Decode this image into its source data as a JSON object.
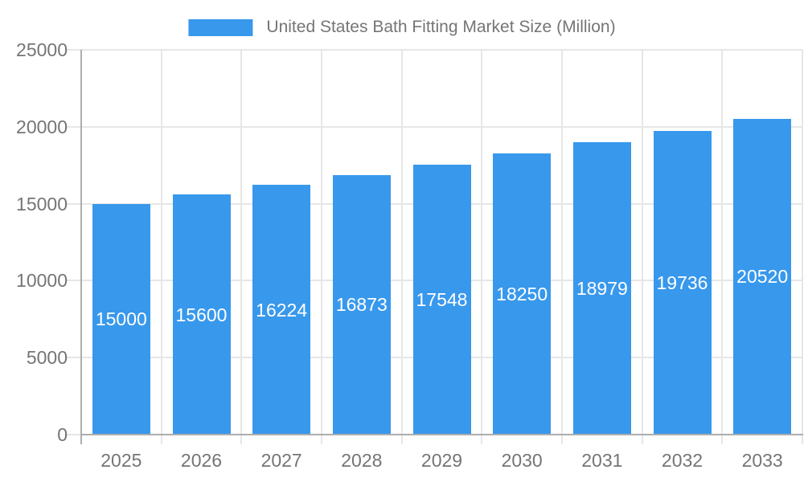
{
  "chart_data": {
    "type": "bar",
    "title": "United States Bath Fitting Market Size (Million)",
    "legend": {
      "label": "United States Bath Fitting Market Size (Million)",
      "position": "top",
      "swatch": "filled-rect"
    },
    "categories": [
      "2025",
      "2026",
      "2027",
      "2028",
      "2029",
      "2030",
      "2031",
      "2032",
      "2033"
    ],
    "values": [
      15000,
      15600,
      16224,
      16873,
      17548,
      18250,
      18979,
      19736,
      20520
    ],
    "value_labels": [
      "15000",
      "15600",
      "16224",
      "16873",
      "17548",
      "18250",
      "18979",
      "19736",
      "20520"
    ],
    "value_label_position": "inside-middle",
    "xlabel": "",
    "ylabel": "",
    "ylim": [
      0,
      25000
    ],
    "yticks": [
      0,
      5000,
      10000,
      15000,
      20000,
      25000
    ],
    "grid": true,
    "colors": {
      "bar": "#3898EC",
      "bar_label": "#FFFFFF",
      "axis_text": "#757575",
      "grid_line": "#E6E6E6",
      "axis_line": "#ADADAD",
      "background": "#FFFFFF"
    }
  }
}
